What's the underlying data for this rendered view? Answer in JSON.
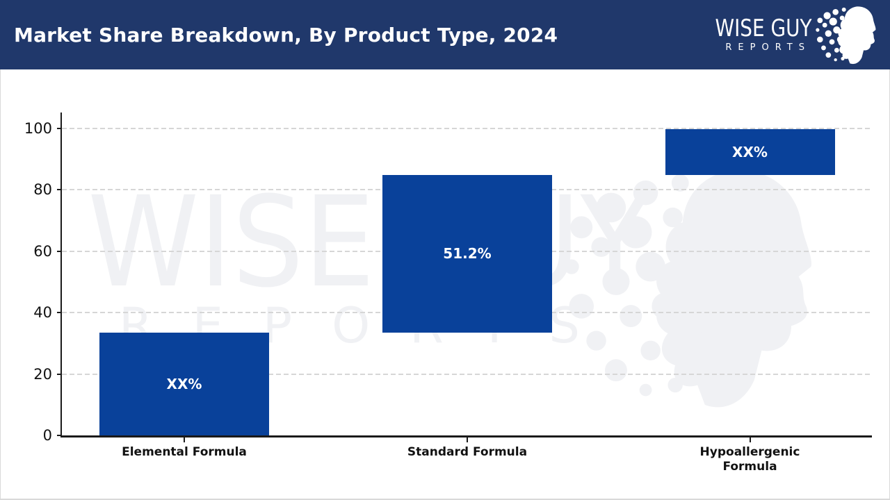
{
  "header": {
    "title": "Market Share Breakdown, By Product Type, 2024",
    "logo": {
      "brand_line1": "WISE GUY",
      "brand_line2": "REPORTS"
    }
  },
  "watermark": {
    "big_text": "WISE GUY",
    "sub_text": "REPORTS"
  },
  "chart_data": {
    "type": "bar",
    "variant": "floating-waterfall",
    "title": "Market Share Breakdown, By Product Type, 2024",
    "categories": [
      "Elemental Formula",
      "Standard Formula",
      "Hypoallergenic Formula"
    ],
    "series": [
      {
        "name": "Market share (%)",
        "segments": [
          {
            "category": "Elemental Formula",
            "base": 0,
            "top": 33.5,
            "value_display": "XX%"
          },
          {
            "category": "Standard Formula",
            "base": 33.5,
            "top": 84.7,
            "value_display": "51.2%"
          },
          {
            "category": "Hypoallergenic Formula",
            "base": 84.7,
            "top": 99.7,
            "value_display": "XX%"
          }
        ]
      }
    ],
    "xlabel": "",
    "ylabel": "",
    "ylim": [
      0,
      100
    ],
    "yticks": [
      0,
      20,
      40,
      60,
      80,
      100
    ],
    "grid": {
      "axis": "y",
      "style": "dashed"
    },
    "legend": "none"
  },
  "colors": {
    "header_bg": "#20386b",
    "title_text": "#ffffff",
    "logo_text": "#ffffff",
    "bar_fill": "#09419a",
    "bar_label": "#ffffff",
    "axis_line": "#1a1a1a",
    "tick_label": "#111111",
    "category_label": "#111111",
    "gridline": "#d6d6d6",
    "watermark": "#f0f1f4"
  }
}
